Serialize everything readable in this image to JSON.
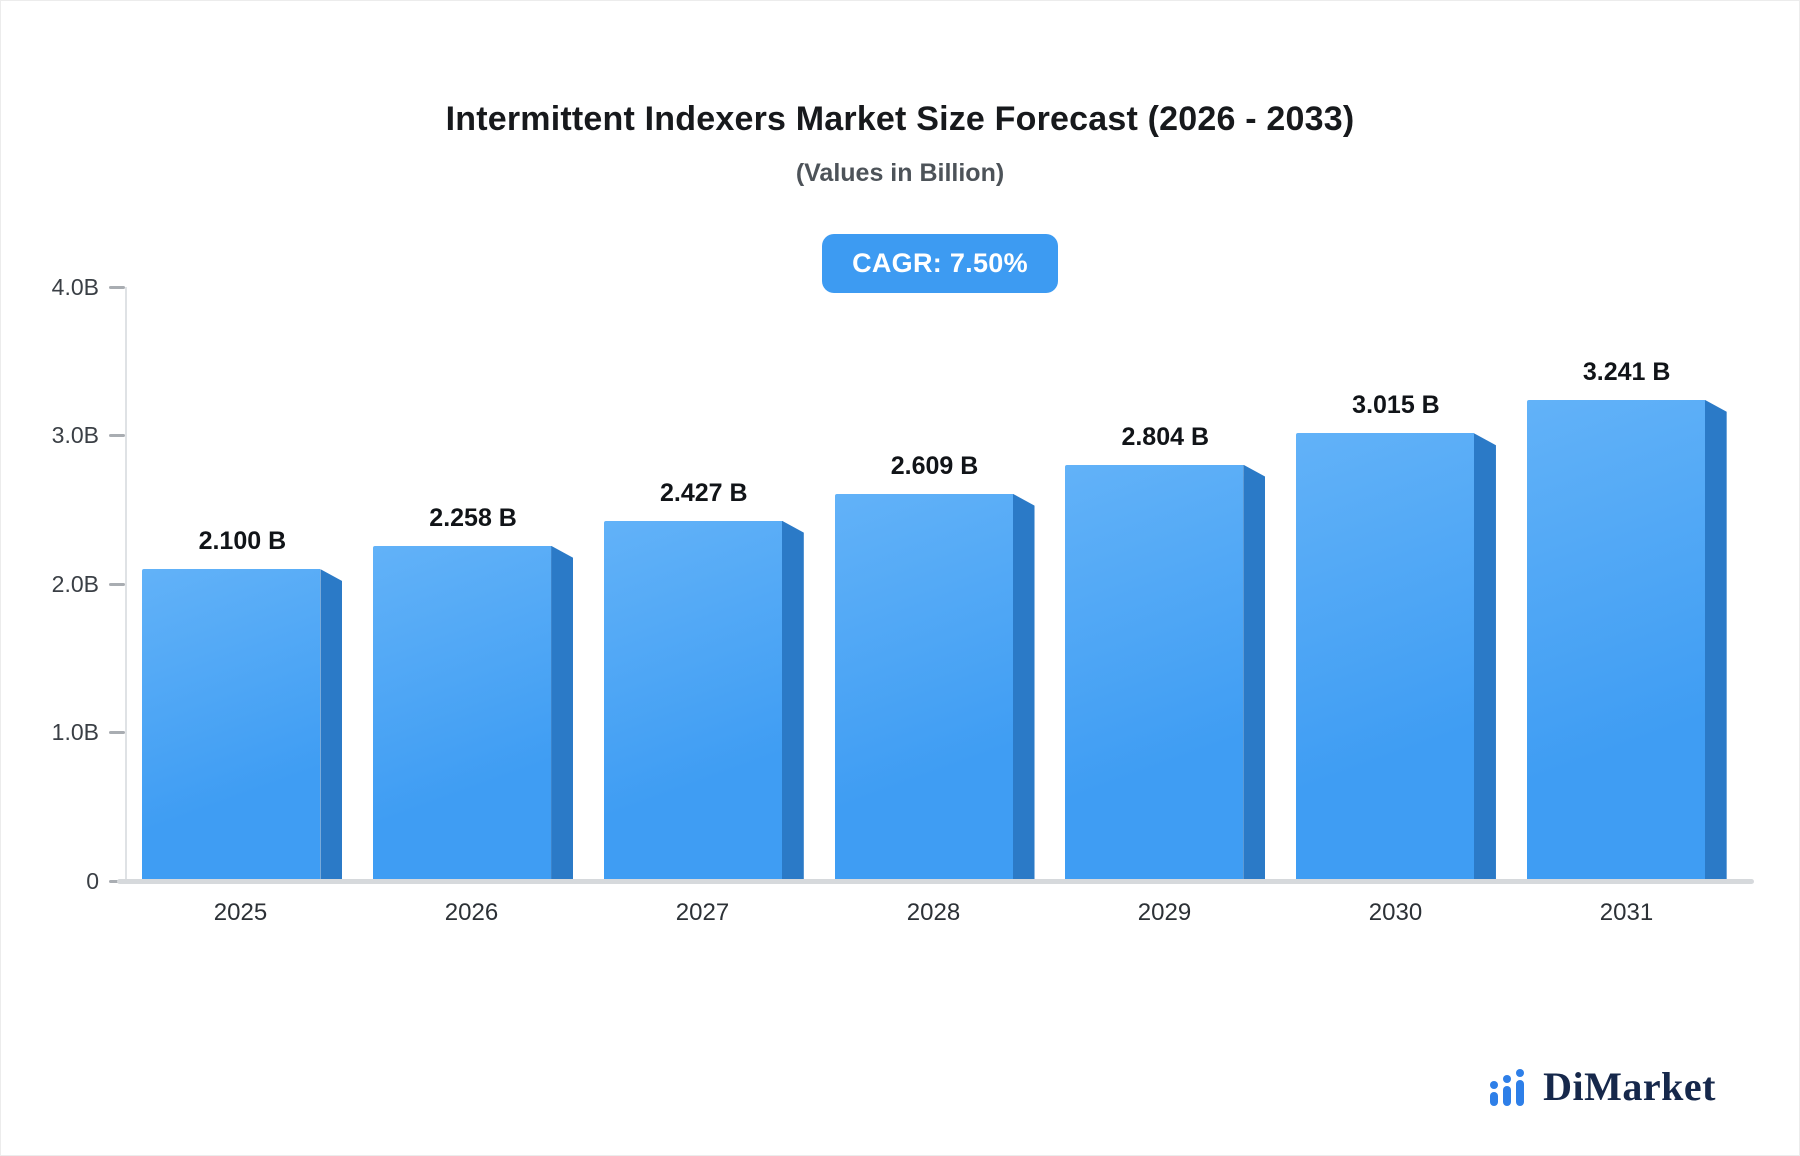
{
  "header": {
    "note": "bar chart report card"
  },
  "chart_data": {
    "type": "bar",
    "title": "Intermittent Indexers Market Size Forecast (2026 - 2033)",
    "subtitle": "(Values in Billion)",
    "categories": [
      "2025",
      "2026",
      "2027",
      "2028",
      "2029",
      "2030",
      "2031"
    ],
    "values": [
      2.1,
      2.258,
      2.427,
      2.609,
      2.804,
      3.015,
      3.241
    ],
    "value_labels": [
      "2.100 B",
      "2.258 B",
      "2.427 B",
      "2.609 B",
      "2.804 B",
      "3.015 B",
      "3.241 B"
    ],
    "xlabel": "",
    "ylabel": "",
    "ylim": [
      0,
      4.0
    ],
    "yticks": [
      0,
      1.0,
      2.0,
      3.0,
      4.0
    ],
    "ytick_labels": [
      "0",
      "1.0B",
      "2.0B",
      "3.0B",
      "4.0B"
    ],
    "grid": false,
    "legend": false,
    "bar_color": "#3f9df3",
    "bar_color_light": "#62b2f8",
    "bar_side_color": "#2b7ac7"
  },
  "badge": {
    "label": "CAGR: 7.50%",
    "background": "#3d9bf2",
    "text_color": "#ffffff"
  },
  "logo": {
    "text": "DiMarket",
    "icon": "bar-chart-icon",
    "text_color": "#16284b",
    "icon_color": "#2e7fe8"
  }
}
